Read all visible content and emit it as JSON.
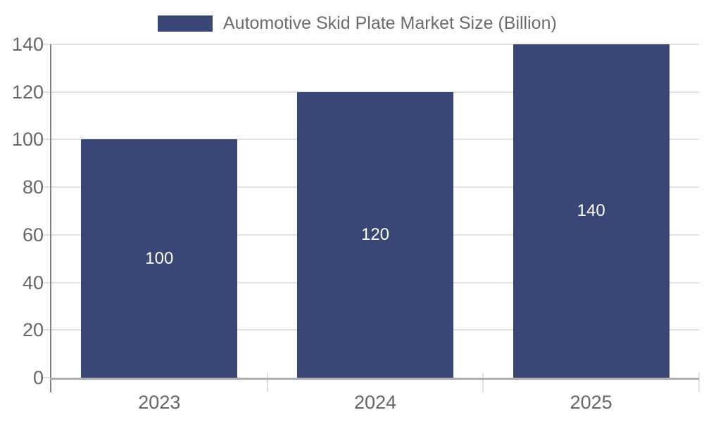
{
  "legend": {
    "label": "Automotive Skid Plate Market Size (Billion)"
  },
  "chart_data": {
    "type": "bar",
    "title": "Automotive Skid Plate Market Size (Billion)",
    "categories": [
      "2023",
      "2024",
      "2025"
    ],
    "values": [
      100,
      120,
      140
    ],
    "data_labels": [
      "100",
      "120",
      "140"
    ],
    "xlabel": "",
    "ylabel": "",
    "ylim": [
      0,
      140
    ],
    "yticks": [
      0,
      20,
      40,
      60,
      80,
      100,
      120,
      140
    ],
    "grid": true,
    "legend_position": "top-center",
    "data_labels_position": "center-of-bar"
  },
  "colors": {
    "bar": "#394777",
    "grid": "#e2e2e2",
    "tick": "#e0e0e0",
    "y_axis": "#808080",
    "x_axis": "#b0b0b0",
    "axis_text": "#666666",
    "legend_text": "#6b6b6b",
    "data_label_text": "#ffffff"
  }
}
